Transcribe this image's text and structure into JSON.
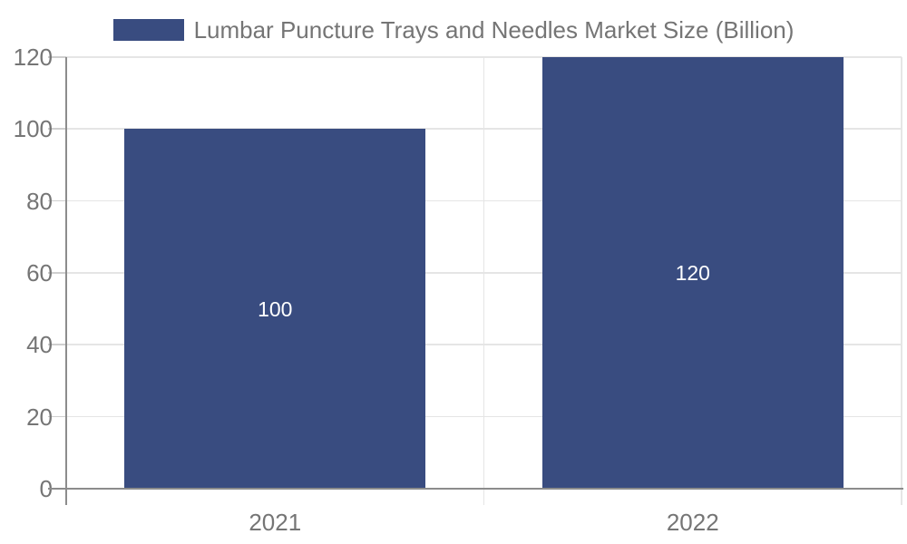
{
  "chart_data": {
    "type": "bar",
    "title": "",
    "legend": [
      "Lumbar Puncture Trays and Needles Market Size (Billion)"
    ],
    "legend_position": "top-center",
    "categories": [
      "2021",
      "2022"
    ],
    "values": [
      100,
      120
    ],
    "data_labels": [
      "100",
      "120"
    ],
    "yticks": [
      0,
      20,
      40,
      60,
      80,
      100,
      120
    ],
    "ylim": [
      0,
      120
    ],
    "grid": true,
    "colors": {
      "bar": "#394C80",
      "data_label": "#FFFFFF",
      "axis_text": "#757575",
      "grid_line": "#E5E5E5",
      "axis_line": "#8C8C8C",
      "tick": "#CFCFCF",
      "background": "#FFFFFF"
    }
  }
}
